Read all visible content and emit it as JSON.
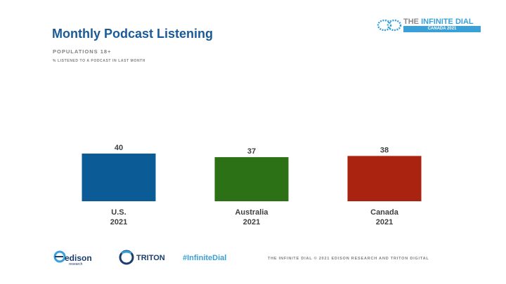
{
  "header": {
    "title": "Monthly Podcast Listening",
    "subtitle": "POPULATIONS 18+",
    "note": "% LISTENED TO A PODCAST IN LAST MONTH"
  },
  "brand": {
    "name_prefix": "THE ",
    "name_main": "INFINITE DIAL",
    "edition": "CANADA 2021",
    "accent": "#3aa0d8"
  },
  "footer": {
    "edison": "edison",
    "edison_sub": "research",
    "triton": "TRITON",
    "hashtag": "#InfiniteDial",
    "copyright": "THE INFINITE DIAL   © 2021 EDISON RESEARCH AND TRITON DIGITAL"
  },
  "chart_data": {
    "type": "bar",
    "categories": [
      [
        "U.S.",
        "2021"
      ],
      [
        "Australia",
        "2021"
      ],
      [
        "Canada",
        "2021"
      ]
    ],
    "values": [
      40,
      37,
      38
    ],
    "colors": [
      "#0b5c96",
      "#2d7116",
      "#aa2311"
    ],
    "ylim": [
      0,
      40
    ],
    "grid": false,
    "legend": "none"
  }
}
